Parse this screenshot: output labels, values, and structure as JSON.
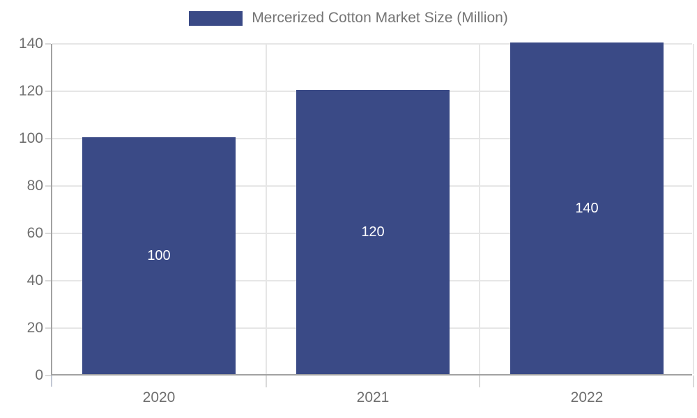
{
  "legend": {
    "label": "Mercerized Cotton Market Size (Million)"
  },
  "colors": {
    "bar": "#3a4a86",
    "legend_text": "#757575",
    "tick_label": "#6f6f6f",
    "gridline": "#e6e6e6",
    "axis_line": "#a2a2a2",
    "value_label": "#ffffff",
    "background": "#ffffff"
  },
  "chart_data": {
    "type": "bar",
    "title": "Mercerized Cotton Market Size (Million)",
    "categories": [
      "2020",
      "2021",
      "2022"
    ],
    "series": [
      {
        "name": "Mercerized Cotton Market Size (Million)",
        "values": [
          100,
          120,
          140
        ]
      }
    ],
    "values": [
      100,
      120,
      140
    ],
    "value_labels": [
      "100",
      "120",
      "140"
    ],
    "xlabel": "",
    "ylabel": "",
    "ylim": [
      0,
      140
    ],
    "yticks": [
      0,
      20,
      40,
      60,
      80,
      100,
      120,
      140
    ],
    "grid": true,
    "legend_position": "top",
    "value_label_position": "inside-center"
  }
}
